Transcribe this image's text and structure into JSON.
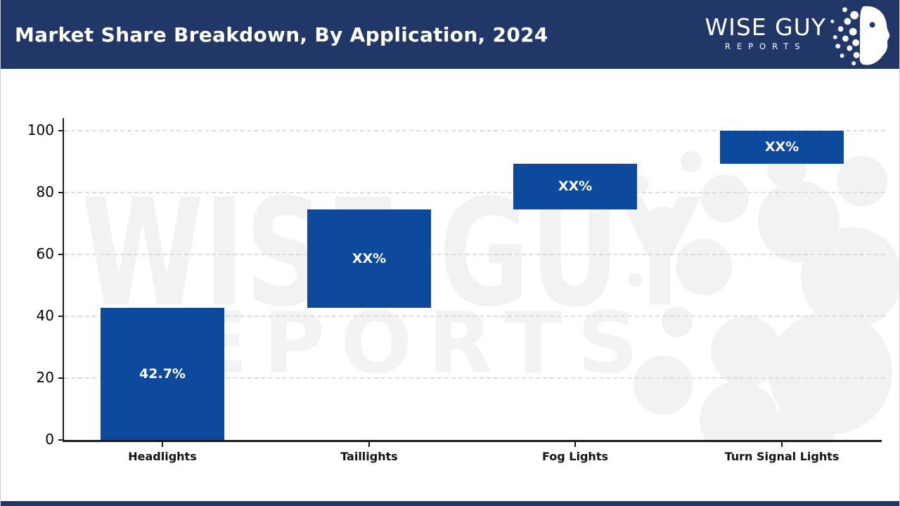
{
  "header": {
    "title": "Market Share Breakdown, By Application, 2024",
    "logo": {
      "line1": "WISE GUY",
      "line2": "REPORTS"
    }
  },
  "watermark": {
    "line1": "WISE GUY",
    "line2": "REPORTS"
  },
  "chart_data": {
    "type": "bar",
    "subtype": "floating-waterfall",
    "title": "Market Share Breakdown, By Application, 2024",
    "categories": [
      "Headlights",
      "Taillights",
      "Fog Lights",
      "Turn Signal Lights"
    ],
    "bars": [
      {
        "category": "Headlights",
        "start": 0,
        "end": 42.7,
        "label": "42.7%"
      },
      {
        "category": "Taillights",
        "start": 42.7,
        "end": 74.5,
        "label": "XX%"
      },
      {
        "category": "Fog Lights",
        "start": 74.5,
        "end": 89.4,
        "label": "XX%"
      },
      {
        "category": "Turn Signal Lights",
        "start": 89.4,
        "end": 100,
        "label": "XX%"
      }
    ],
    "yticks": [
      0,
      20,
      40,
      60,
      80,
      100
    ],
    "ylim": [
      0,
      105
    ],
    "xlabel": "",
    "ylabel": "",
    "grid": "horizontal-dashed",
    "legend_position": "none",
    "colors": {
      "bar": "#0d4a9e",
      "header_bg": "#203767",
      "grid": "#dcdcdc",
      "axis": "#1a1a1a",
      "bar_label_text": "#ffffff",
      "watermark": "#f2f2f2"
    }
  }
}
